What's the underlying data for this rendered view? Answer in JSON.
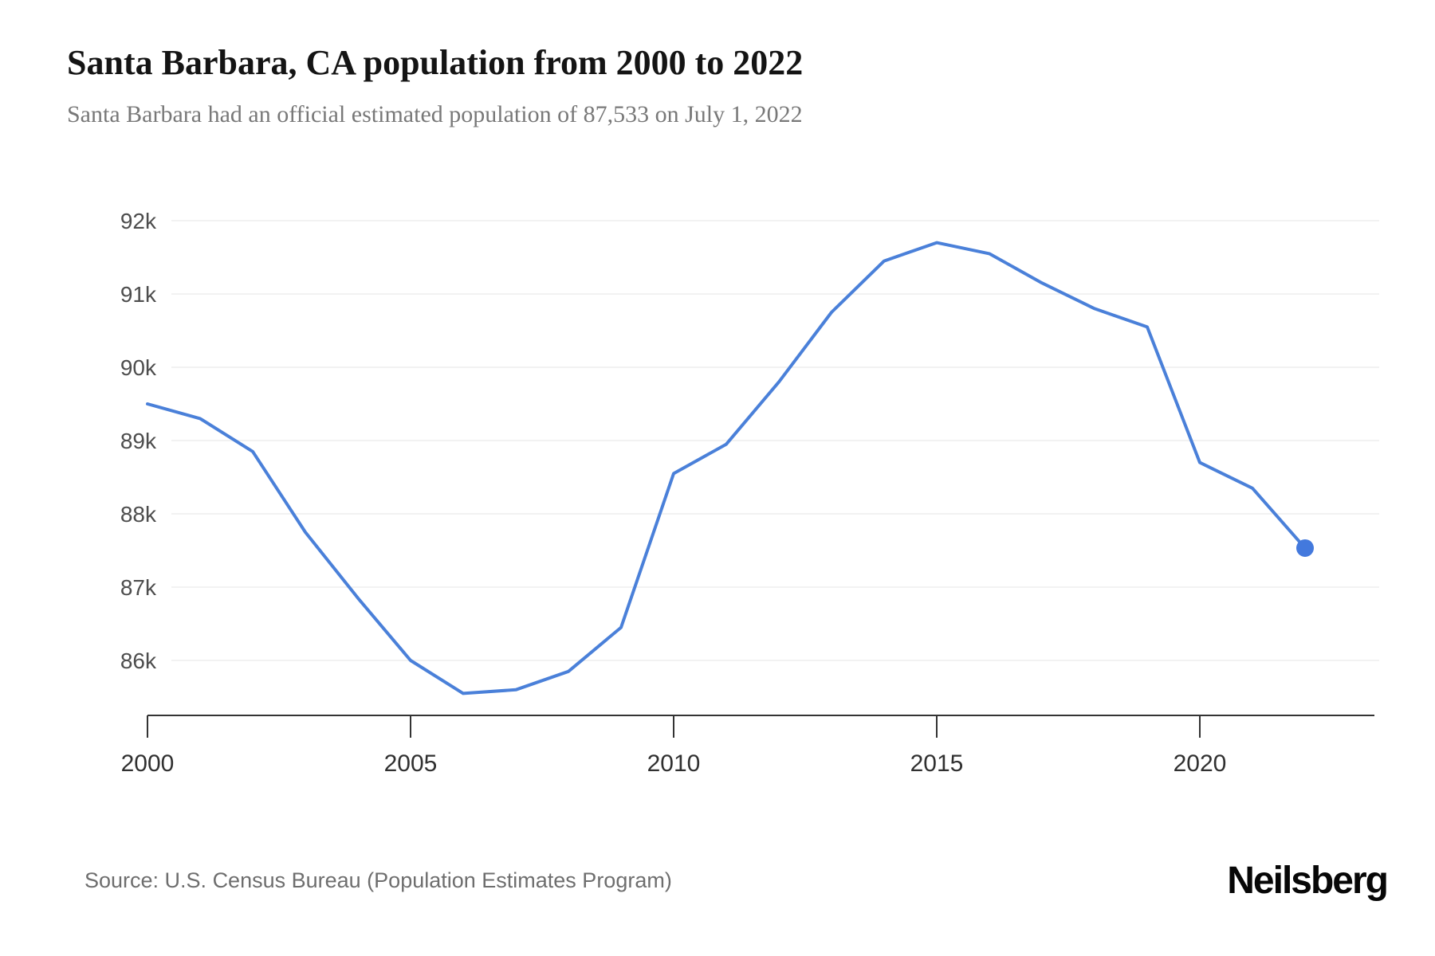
{
  "header": {
    "title": "Santa Barbara, CA population from 2000 to 2022",
    "subtitle": "Santa Barbara had an official estimated population of 87,533 on July 1, 2022"
  },
  "footer": {
    "source": "Source: U.S. Census Bureau (Population Estimates Program)",
    "brand": "Neilsberg"
  },
  "colors": {
    "line": "#4a80d9",
    "end_dot": "#4379dd",
    "gridline": "#f2f2f2",
    "axis": "#333333",
    "y_label": "#4d4d4d",
    "x_label": "#303030"
  },
  "chart_data": {
    "type": "line",
    "title": "Santa Barbara, CA population from 2000 to 2022",
    "xlabel": "",
    "ylabel": "",
    "x": [
      2000,
      2001,
      2002,
      2003,
      2004,
      2005,
      2006,
      2007,
      2008,
      2009,
      2010,
      2011,
      2012,
      2013,
      2014,
      2015,
      2016,
      2017,
      2018,
      2019,
      2020,
      2021,
      2022
    ],
    "values": [
      89500,
      89300,
      88850,
      87750,
      86850,
      86000,
      85550,
      85600,
      85850,
      86450,
      88550,
      88950,
      89800,
      90750,
      91450,
      91700,
      91550,
      91150,
      90800,
      90550,
      88700,
      88350,
      87533
    ],
    "final_point": {
      "year": 2022,
      "value": 87533,
      "marker": "filled-dot"
    },
    "yticks": {
      "values": [
        92000,
        91000,
        90000,
        89000,
        88000,
        87000,
        86000
      ],
      "labels": [
        "92k",
        "91k",
        "90k",
        "89k",
        "88k",
        "87k",
        "86k"
      ]
    },
    "xticks": {
      "values": [
        2000,
        2005,
        2010,
        2015,
        2020
      ],
      "labels": [
        "2000",
        "2005",
        "2010",
        "2015",
        "2020"
      ]
    },
    "ylim": [
      85250,
      92500
    ],
    "xlim": [
      2000,
      2023.3
    ],
    "grid": true,
    "legend": false
  }
}
